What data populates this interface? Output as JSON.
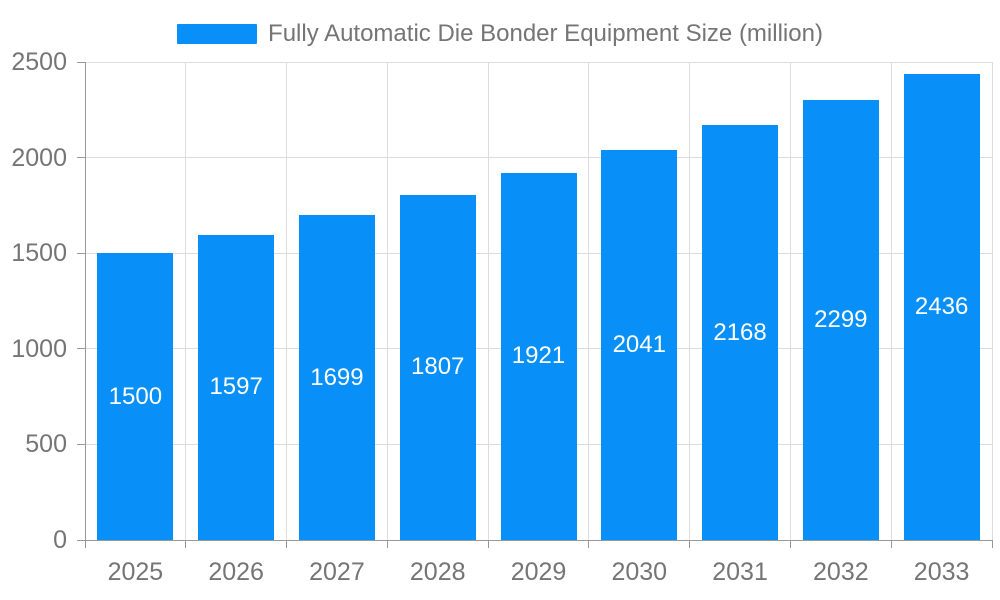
{
  "colors": {
    "bar": "#0890F8",
    "axis": "#999999",
    "grid": "#DCDCDC",
    "text": "#757575",
    "bar_label": "#FFFFFF",
    "background": "#FFFFFF"
  },
  "chart_data": {
    "type": "bar",
    "title": "Fully Automatic Die Bonder Equipment Size (million)",
    "categories": [
      "2025",
      "2026",
      "2027",
      "2028",
      "2029",
      "2030",
      "2031",
      "2032",
      "2033"
    ],
    "values": [
      1500,
      1597,
      1699,
      1807,
      1921,
      2041,
      2168,
      2299,
      2436
    ],
    "series": [
      {
        "name": "Fully Automatic Die Bonder Equipment Size (million)",
        "values": [
          1500,
          1597,
          1699,
          1807,
          1921,
          2041,
          2168,
          2299,
          2436
        ]
      }
    ],
    "xlabel": "",
    "ylabel": "",
    "ylim": [
      0,
      2500
    ],
    "y_ticks": [
      0,
      500,
      1000,
      1500,
      2000,
      2500
    ],
    "grid": true,
    "legend_position": "top",
    "bar_labels_inside": true
  }
}
